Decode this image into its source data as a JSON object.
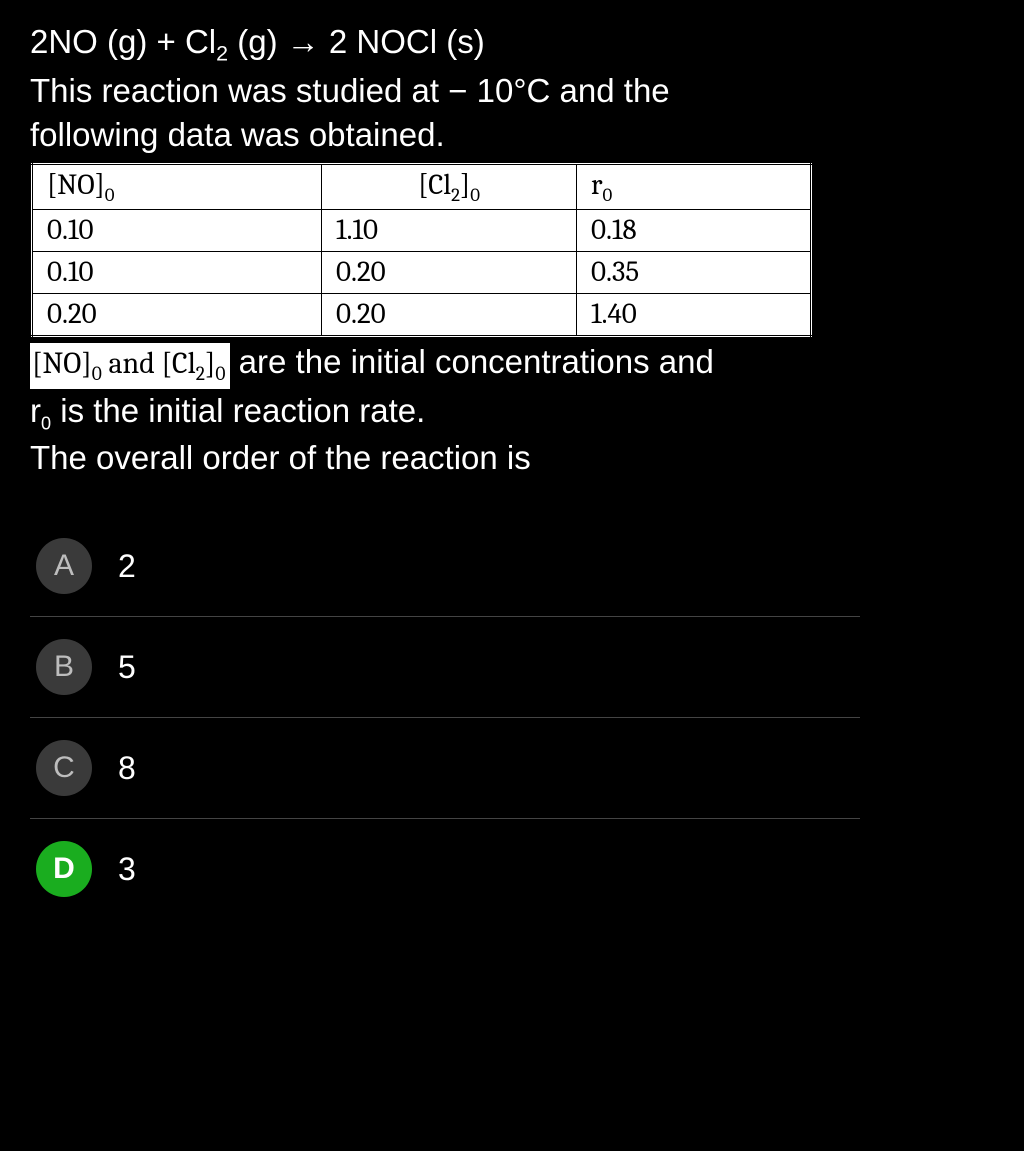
{
  "equation": "2NO (g) + Cl₂ (g) → 2 NOCl (s)",
  "intro_line1": "This reaction was studied at − 10°C and the",
  "intro_line2": "following data was obtained.",
  "table": {
    "headers": {
      "c1": "[NO]₀",
      "c2": "[Cl₂]₀",
      "c3": "r₀"
    },
    "rows": [
      {
        "c1": "0.10",
        "c2": "1.10",
        "c3": "0.18"
      },
      {
        "c1": "0.10",
        "c2": "0.20",
        "c3": "0.35"
      },
      {
        "c1": "0.20",
        "c2": "0.20",
        "c3": "1.40"
      }
    ]
  },
  "note_box": "[NO]₀ and [Cl₂]₀",
  "note_rest": " are the initial concentrations and",
  "note_line2": "r₀ is the initial reaction rate.",
  "question_final": "The overall order of the reaction is",
  "options": {
    "a": {
      "letter": "A",
      "text": "2",
      "selected": false
    },
    "b": {
      "letter": "B",
      "text": "5",
      "selected": false
    },
    "c": {
      "letter": "C",
      "text": "8",
      "selected": false
    },
    "d": {
      "letter": "D",
      "text": "3",
      "selected": true
    }
  }
}
